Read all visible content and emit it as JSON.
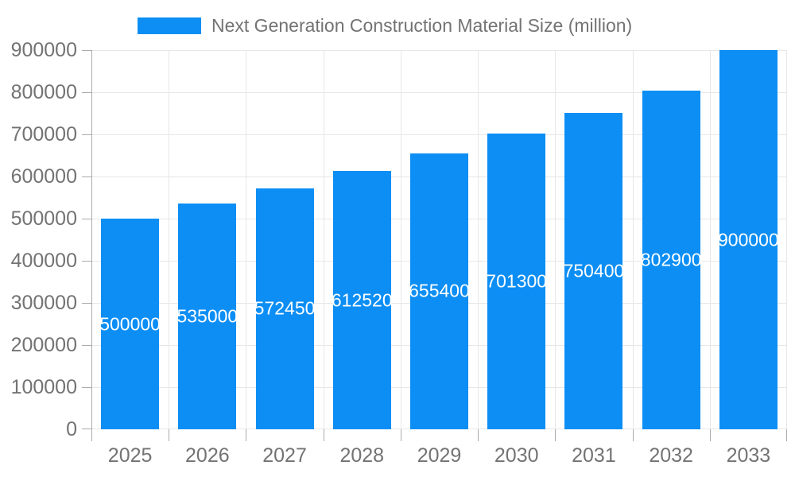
{
  "legend": {
    "label": "Next Generation Construction Material Size (million)"
  },
  "colors": {
    "bar": "#0C8EF4",
    "grid": "#E7E7E7",
    "axis": "#ABABAB",
    "text": "#737373",
    "value_label": "#FFFFFF",
    "background": "#FFFFFF"
  },
  "chart_data": {
    "type": "bar",
    "title": "Next Generation Construction Material Size (million)",
    "categories": [
      "2025",
      "2026",
      "2027",
      "2028",
      "2029",
      "2030",
      "2031",
      "2032",
      "2033"
    ],
    "series": [
      {
        "name": "Next Generation Construction Material Size (million)",
        "color": "#0C8EF4",
        "values": [
          500000,
          535000,
          572450,
          612520,
          655400,
          701300,
          750400,
          802900,
          900000
        ]
      }
    ],
    "value_labels": [
      "500000",
      "535000",
      "572450",
      "612520",
      "655400",
      "701300",
      "750400",
      "802900",
      "900000"
    ],
    "xlabel": "",
    "ylabel": "",
    "ylim": [
      0,
      900000
    ],
    "ytick_step": 100000,
    "yticks": [
      "0",
      "100000",
      "200000",
      "300000",
      "400000",
      "500000",
      "600000",
      "700000",
      "800000",
      "900000"
    ],
    "grid": true,
    "legend_position": "top"
  }
}
